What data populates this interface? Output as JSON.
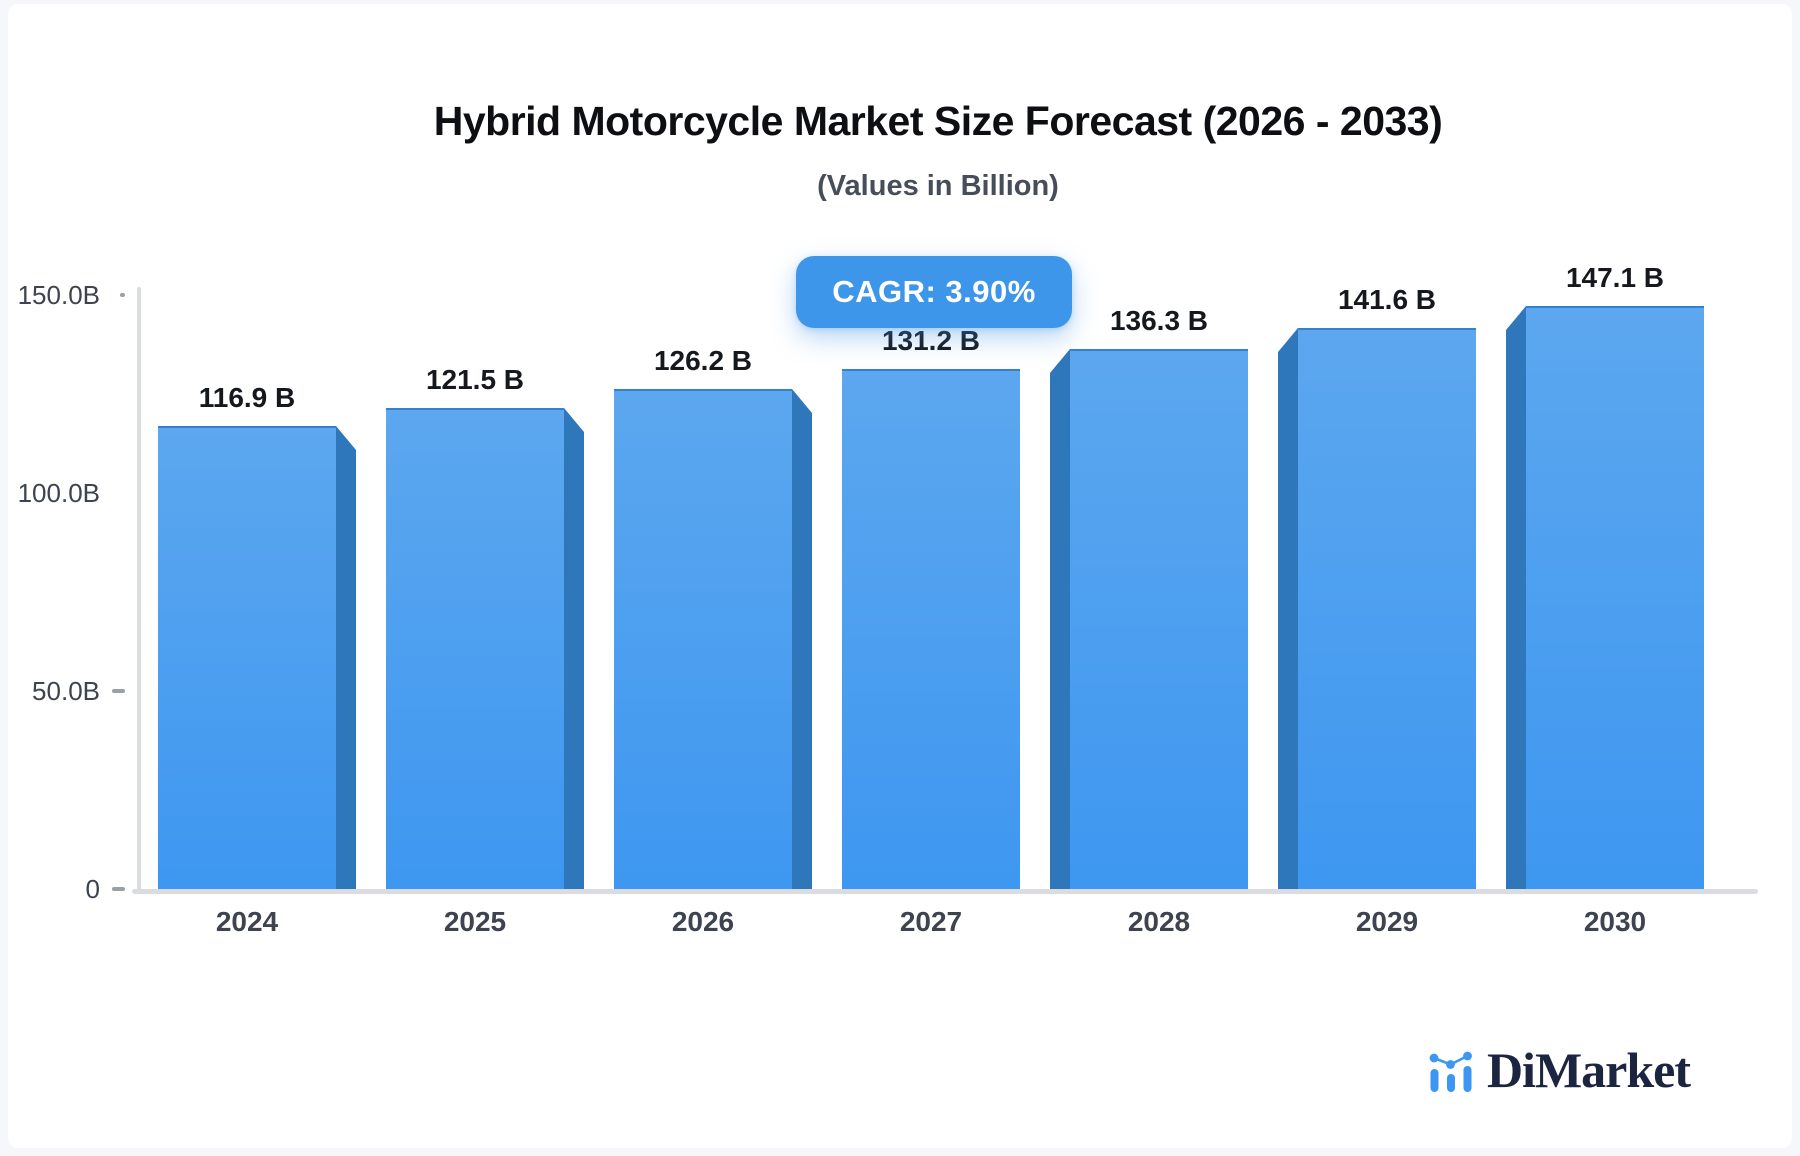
{
  "header": {
    "title": "Hybrid Motorcycle Market Size Forecast (2026 - 2033)",
    "subtitle": "(Values in Billion)"
  },
  "badge": {
    "label": "CAGR: 3.90%"
  },
  "chart_data": {
    "type": "bar",
    "title": "Hybrid Motorcycle Market Size Forecast (2026 - 2033)",
    "subtitle": "(Values in Billion)",
    "unit": "Billion",
    "cagr_label": "CAGR: 3.90%",
    "cagr_percent": 3.9,
    "categories": [
      "2024",
      "2025",
      "2026",
      "2027",
      "2028",
      "2029",
      "2030"
    ],
    "values": [
      116.9,
      121.5,
      126.2,
      131.2,
      136.3,
      141.6,
      147.1
    ],
    "value_labels": [
      "116.9 B",
      "121.5 B",
      "126.2 B",
      "131.2 B",
      "136.3 B",
      "141.6 B",
      "147.1 B"
    ],
    "ylim": [
      0,
      150
    ],
    "yticks": [
      {
        "value": 150,
        "label": "150.0B"
      },
      {
        "value": 100,
        "label": "100.0B"
      },
      {
        "value": 50,
        "label": "50.0B"
      },
      {
        "value": 0,
        "label": "0"
      }
    ],
    "grid": false,
    "legend": "none",
    "bar_style": "3d-extruded"
  },
  "colors": {
    "bar_top": "#5CA7EF",
    "bar_bottom": "#3E97F0",
    "bar_side": "#2E77BA",
    "badge_bg": "#3D96EA",
    "axis_line": "#DADCE1",
    "tick": "#9AA0A9",
    "label": "#3D4450",
    "value_label": "#15181D",
    "title": "#0D0F13",
    "subtitle": "#474E5A",
    "logo_text": "#1B2540",
    "logo_icon": "#3B97F3"
  },
  "logo": {
    "text": "DiMarket",
    "icon": "bar-chart-logo-icon"
  }
}
